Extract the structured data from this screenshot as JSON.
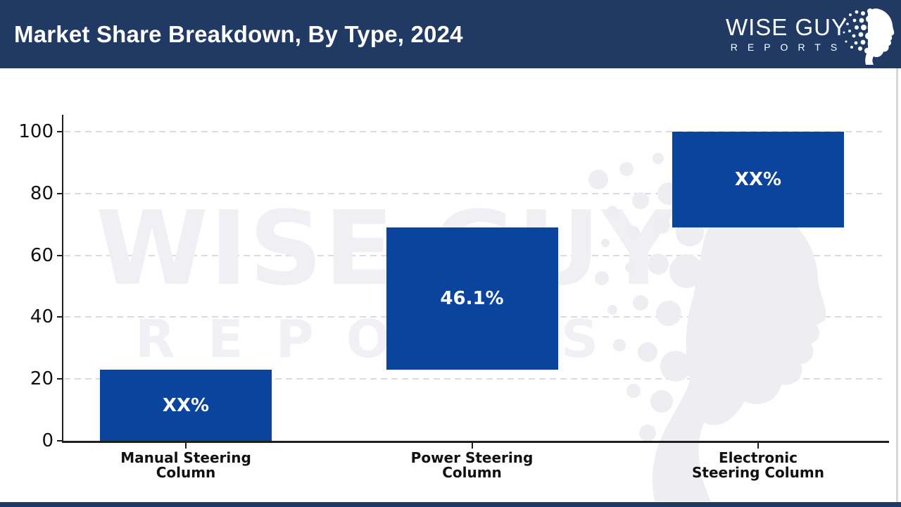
{
  "header": {
    "title": "Market Share Breakdown, By Type, 2024",
    "logo": {
      "name": "WISE GUY",
      "subtitle": "REPORTS"
    }
  },
  "watermark": {
    "line1": "WISE GUY",
    "line2": "REPORTS"
  },
  "chart_data": {
    "type": "bar",
    "subtype": "floating-waterfall",
    "title": "Market Share Breakdown, By Type, 2024",
    "categories": [
      "Manual Steering\nColumn",
      "Power Steering\nColumn",
      "Electronic\nSteering Column"
    ],
    "bars": [
      {
        "category": "Manual Steering Column",
        "start": 0,
        "end": 23,
        "label": "XX%"
      },
      {
        "category": "Power Steering Column",
        "start": 23,
        "end": 69.1,
        "label": "46.1%"
      },
      {
        "category": "Electronic Steering Column",
        "start": 69.1,
        "end": 100,
        "label": "XX%"
      }
    ],
    "xlabel": "",
    "ylabel": "",
    "ylim": [
      0,
      100
    ],
    "yticks": [
      0,
      20,
      40,
      60,
      80,
      100
    ],
    "grid": "dashed horizontal gridlines",
    "legend": "none",
    "bar_color": "#0a449c",
    "value_label_color": "#ffffff"
  },
  "colors": {
    "header_bg": "#213a64",
    "footer_bg": "#213a64",
    "bar": "#0a449c",
    "axis": "#1f1f1f",
    "grid": "#dcdcdc",
    "watermark": "#f0f0f4"
  }
}
